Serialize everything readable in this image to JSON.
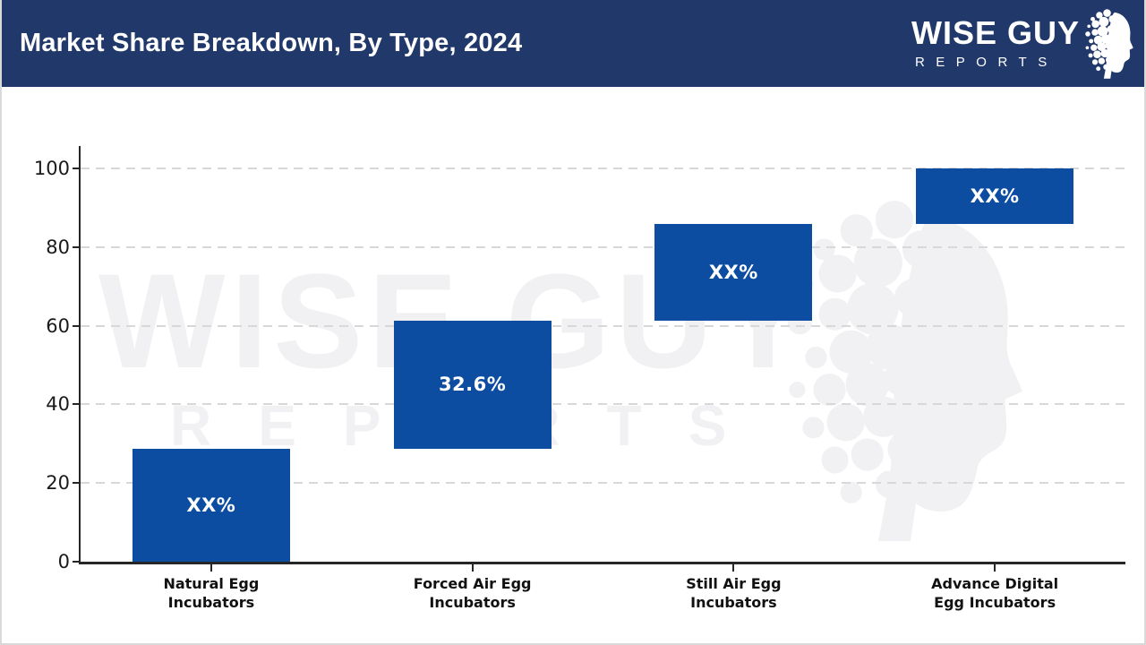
{
  "header": {
    "title": "Market Share Breakdown, By Type, 2024",
    "logo": {
      "name": "WISE GUY",
      "tagline": "REPORTS"
    }
  },
  "watermark": {
    "line1": "WISE GUY",
    "line2": "REPORTS"
  },
  "chart_data": {
    "type": "bar",
    "subtype": "waterfall-steps",
    "title": "Market Share Breakdown, By Type, 2024",
    "categories": [
      "Natural Egg\nIncubators",
      "Forced Air Egg\nIncubators",
      "Still Air Egg\nIncubators",
      "Advance Digital\nEgg Incubators"
    ],
    "segments": [
      {
        "category": "Natural Egg Incubators",
        "start": 0,
        "end": 28.7,
        "value": 28.7,
        "label": "XX%"
      },
      {
        "category": "Forced Air Egg Incubators",
        "start": 28.7,
        "end": 61.3,
        "value": 32.6,
        "label": "32.6%"
      },
      {
        "category": "Still Air Egg Incubators",
        "start": 61.3,
        "end": 85.9,
        "value": 24.6,
        "label": "XX%"
      },
      {
        "category": "Advance Digital Egg Incubators",
        "start": 85.9,
        "end": 100,
        "value": 14.1,
        "label": "XX%"
      }
    ],
    "ylabel": "",
    "xlabel": "",
    "ylim": [
      0,
      100
    ],
    "yticks": [
      0,
      20,
      40,
      60,
      80,
      100
    ],
    "grid": "horizontal-dashed",
    "legend": false,
    "bar_color": "#0c4da2",
    "bar_label_color": "#ffffff"
  }
}
